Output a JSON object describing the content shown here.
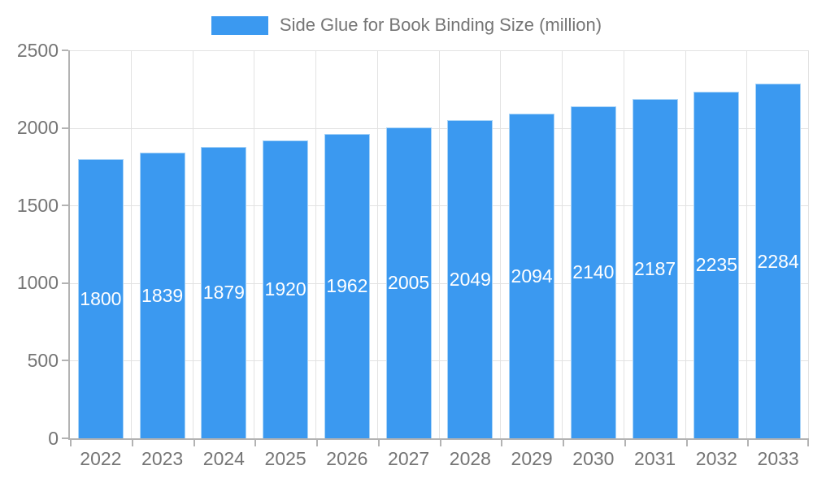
{
  "legend": {
    "label": "Side Glue for Book Binding Size (million)"
  },
  "colors": {
    "bar": "#3B99F0",
    "bar_border": "#A9D4F8",
    "grid": "#E2E2E2",
    "axis": "#B3B3B3",
    "text": "#757575",
    "value_text": "#FFFFFF"
  },
  "chart_data": {
    "type": "bar",
    "title": "Side Glue for Book Binding Size (million)",
    "categories": [
      "2022",
      "2023",
      "2024",
      "2025",
      "2026",
      "2027",
      "2028",
      "2029",
      "2030",
      "2031",
      "2032",
      "2033"
    ],
    "values": [
      1800,
      1839,
      1879,
      1920,
      1962,
      2005,
      2049,
      2094,
      2140,
      2187,
      2235,
      2284
    ],
    "series": [
      {
        "name": "Side Glue for Book Binding Size (million)",
        "values": [
          1800,
          1839,
          1879,
          1920,
          1962,
          2005,
          2049,
          2094,
          2140,
          2187,
          2235,
          2284
        ]
      }
    ],
    "xlabel": "",
    "ylabel": "",
    "ylim": [
      0,
      2500
    ],
    "yticks": [
      0,
      500,
      1000,
      1500,
      2000,
      2500
    ],
    "grid": true,
    "legend_position": "top",
    "value_labels": "inside-middle"
  }
}
